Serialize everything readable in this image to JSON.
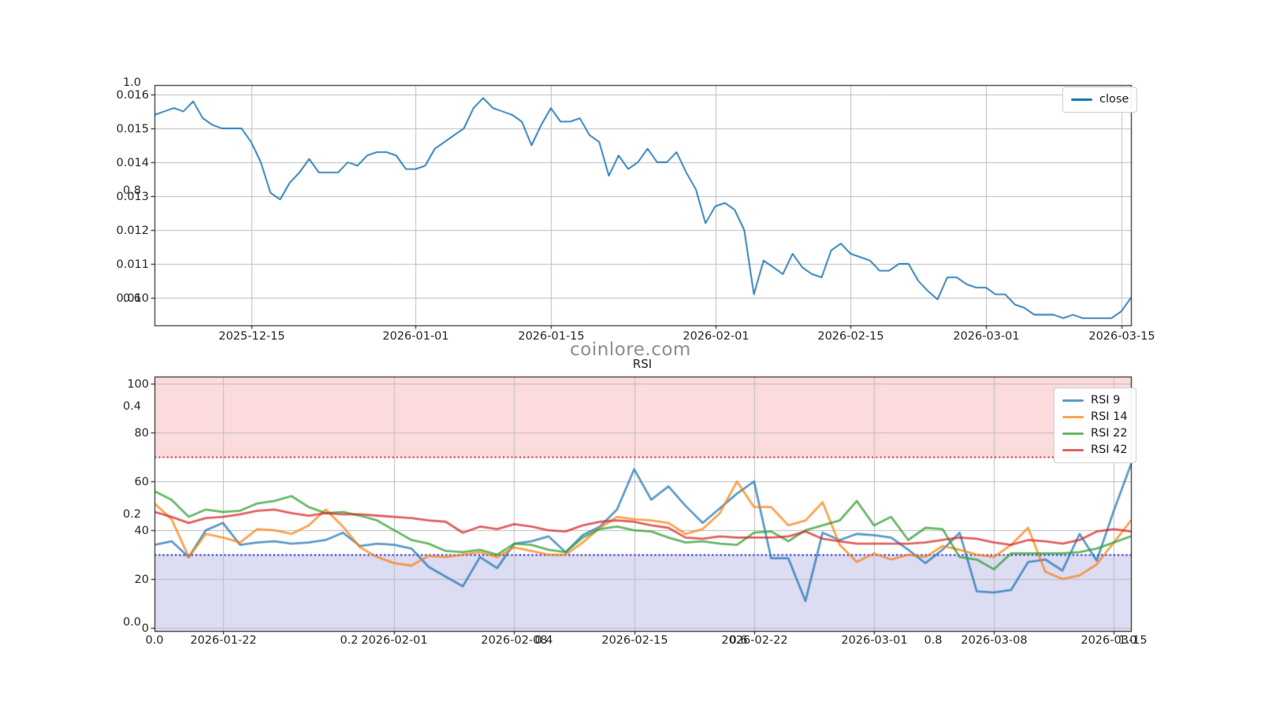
{
  "watermark": "coinlore.com",
  "colors": {
    "background": "#ffffff",
    "grid": "#bdbdbd",
    "spine": "#262626",
    "tick_text": "#262626",
    "watermark_text": "#8d8d8d",
    "accent_blue": "#1f77b4",
    "accent_orange": "#ff7f0e",
    "accent_green": "#2ca02c",
    "accent_red": "#d62728"
  },
  "ghost_axis": {
    "x_labels": [
      "0.0",
      "0.2",
      "0.4",
      "0.6",
      "0.8",
      "1.0"
    ],
    "y_labels": [
      "1.0",
      "0.8",
      "0.6",
      "0.4",
      "0.2",
      "0.0"
    ]
  },
  "chart_data": [
    {
      "type": "line",
      "title": "",
      "xlabel": "",
      "ylabel": "",
      "legend_position": "upper right",
      "grid": true,
      "xlim": [
        "2025-12-05T00:00:00Z",
        "2026-03-16T00:00:00Z"
      ],
      "ylim": [
        0.009186,
        0.016279
      ],
      "x_ticks": [
        "2025-12-15",
        "2026-01-01",
        "2026-01-15",
        "2026-02-01",
        "2026-02-15",
        "2026-03-01",
        "2026-03-15"
      ],
      "y_ticks": [
        {
          "value": 0.016,
          "label": "0.016"
        },
        {
          "value": 0.015,
          "label": "0.015"
        },
        {
          "value": 0.014,
          "label": "0.014"
        },
        {
          "value": 0.013,
          "label": "0.013"
        },
        {
          "value": 0.012,
          "label": "0.012"
        },
        {
          "value": 0.011,
          "label": "0.011"
        },
        {
          "value": 0.01,
          "label": "0.010"
        }
      ],
      "bands": [],
      "hlines": [],
      "series": [
        {
          "name": "close",
          "color": "#1f77b4",
          "alpha": 1,
          "width": 1.8,
          "start": "2025-12-05T00:00:00Z",
          "interval": "1d",
          "values": [
            0.0154,
            0.0155,
            0.0156,
            0.0155,
            0.0158,
            0.0153,
            0.0151,
            0.015,
            0.015,
            0.015,
            0.0146,
            0.014,
            0.0131,
            0.0129,
            0.0134,
            0.0137,
            0.0141,
            0.0137,
            0.0137,
            0.0137,
            0.014,
            0.0139,
            0.0142,
            0.0143,
            0.0143,
            0.0142,
            0.0138,
            0.0138,
            0.0139,
            0.0144,
            0.0146,
            0.0148,
            0.015,
            0.0156,
            0.0159,
            0.0156,
            0.0155,
            0.0154,
            0.0152,
            0.0145,
            0.0151,
            0.0156,
            0.0152,
            0.0152,
            0.0153,
            0.0148,
            0.0146,
            0.0136,
            0.0142,
            0.0138,
            0.014,
            0.0144,
            0.014,
            0.014,
            0.0143,
            0.0137,
            0.0132,
            0.0122,
            0.0127,
            0.0128,
            0.0126,
            0.012,
            0.0101,
            0.0111,
            0.0109,
            0.0107,
            0.0113,
            0.0109,
            0.0107,
            0.0106,
            0.0114,
            0.0116,
            0.0113,
            0.0112,
            0.0111,
            0.0108,
            0.0108,
            0.011,
            0.011,
            0.0105,
            0.0102,
            0.00995,
            0.0106,
            0.0106,
            0.0104,
            0.0103,
            0.0103,
            0.0101,
            0.0101,
            0.0098,
            0.0097,
            0.0095,
            0.0095,
            0.0095,
            0.0094,
            0.0095,
            0.0094,
            0.0094,
            0.0094,
            0.0094,
            0.0096,
            0.01
          ]
        }
      ]
    },
    {
      "type": "line",
      "title": "RSI",
      "xlabel": "",
      "ylabel": "",
      "legend_position": "upper right",
      "grid": true,
      "xlim": [
        "2026-01-18T00:00:00Z",
        "2026-03-16T00:00:00Z"
      ],
      "ylim": [
        -1.3,
        103
      ],
      "x_ticks": [
        "2026-01-22",
        "2026-02-01",
        "2026-02-08",
        "2026-02-15",
        "2026-02-22",
        "2026-03-01",
        "2026-03-08",
        "2026-03-15"
      ],
      "y_ticks": [
        {
          "value": 100,
          "label": "100"
        },
        {
          "value": 80,
          "label": "80"
        },
        {
          "value": 60,
          "label": "60"
        },
        {
          "value": 40,
          "label": "40"
        },
        {
          "value": 20,
          "label": "20"
        },
        {
          "value": 0,
          "label": "0"
        }
      ],
      "overbought_level": 70,
      "oversold_level": 30,
      "bands": [
        {
          "from": 70,
          "to": 103,
          "color": "#fbdbdc"
        },
        {
          "from": -1.3,
          "to": 30,
          "color": "#dcdcf2"
        }
      ],
      "hlines": [
        {
          "y": 70,
          "color": "#dd1c2c",
          "style": "dotted"
        },
        {
          "y": 30,
          "color": "#1f1fcf",
          "style": "dotted"
        }
      ],
      "series": [
        {
          "name": "RSI 9",
          "color": "#1f77b4",
          "alpha": 0.72,
          "width": 2.8,
          "start": "2026-01-18T00:00:00Z",
          "interval": "1d",
          "values": [
            34,
            35.5,
            29,
            40,
            43,
            34,
            35,
            35.5,
            34.5,
            35,
            36,
            39,
            33.5,
            34.5,
            34,
            32.5,
            25,
            21,
            17,
            29,
            24.5,
            34.5,
            35.5,
            37.5,
            31,
            38,
            41.5,
            48.5,
            65,
            52.5,
            58,
            50,
            43,
            49,
            55,
            60,
            28.5,
            28.5,
            11,
            39,
            36,
            38.5,
            38,
            37,
            32,
            26.5,
            32,
            39,
            15,
            14.5,
            15.5,
            27,
            28,
            23.5,
            38.5,
            27.5,
            48,
            67
          ]
        },
        {
          "name": "RSI 14",
          "color": "#ff7f0e",
          "alpha": 0.72,
          "width": 2.8,
          "start": "2026-01-18T00:00:00Z",
          "interval": "1d",
          "values": [
            51,
            44.5,
            29,
            38.5,
            37,
            35,
            40.5,
            40,
            38.5,
            42,
            48.5,
            41.5,
            33,
            29,
            26.5,
            25.5,
            29.5,
            29,
            30,
            31,
            29,
            33,
            31.5,
            30,
            30,
            35,
            41,
            45.5,
            44.5,
            44,
            43,
            38.5,
            40.5,
            47,
            60,
            49.5,
            49.5,
            42,
            44,
            51.5,
            34,
            27,
            30.5,
            28,
            30,
            29,
            33.5,
            32,
            30,
            29,
            34,
            41,
            23,
            20,
            21.5,
            26,
            35,
            44
          ]
        },
        {
          "name": "RSI 22",
          "color": "#2ca02c",
          "alpha": 0.72,
          "width": 2.8,
          "start": "2026-01-18T00:00:00Z",
          "interval": "1d",
          "values": [
            56,
            52.5,
            45.5,
            48.5,
            47.5,
            48,
            51,
            52,
            54,
            49.5,
            47,
            47.5,
            46,
            44,
            40,
            36,
            34.5,
            31.5,
            31,
            32,
            30,
            34.5,
            34,
            32,
            31,
            37,
            40.5,
            41.5,
            40,
            39.5,
            37,
            35,
            35.5,
            34.5,
            34,
            39,
            39.5,
            35.5,
            40,
            42,
            44,
            52,
            42,
            45.5,
            36,
            41,
            40.5,
            29,
            28,
            24,
            30.5,
            30.5,
            30.5,
            30.5,
            31,
            32.5,
            35,
            37.5
          ]
        },
        {
          "name": "RSI 42",
          "color": "#d62728",
          "alpha": 0.72,
          "width": 2.8,
          "start": "2026-01-18T00:00:00Z",
          "interval": "1d",
          "values": [
            47.5,
            45.5,
            43,
            45,
            45.5,
            46.5,
            48,
            48.5,
            47,
            46,
            47,
            46.5,
            46.5,
            46,
            45.5,
            45,
            44,
            43.5,
            39,
            41.5,
            40.5,
            42.5,
            41.5,
            40,
            39.5,
            42,
            43.5,
            44,
            43.5,
            42,
            41,
            37,
            36.5,
            37.5,
            37,
            37,
            37,
            37.5,
            39.5,
            36.5,
            35.5,
            34.5,
            34.5,
            34.5,
            34.5,
            35,
            36,
            37,
            36.5,
            35,
            34,
            36,
            35.5,
            34.5,
            36,
            39.5,
            40.5,
            39.5
          ]
        }
      ]
    }
  ]
}
